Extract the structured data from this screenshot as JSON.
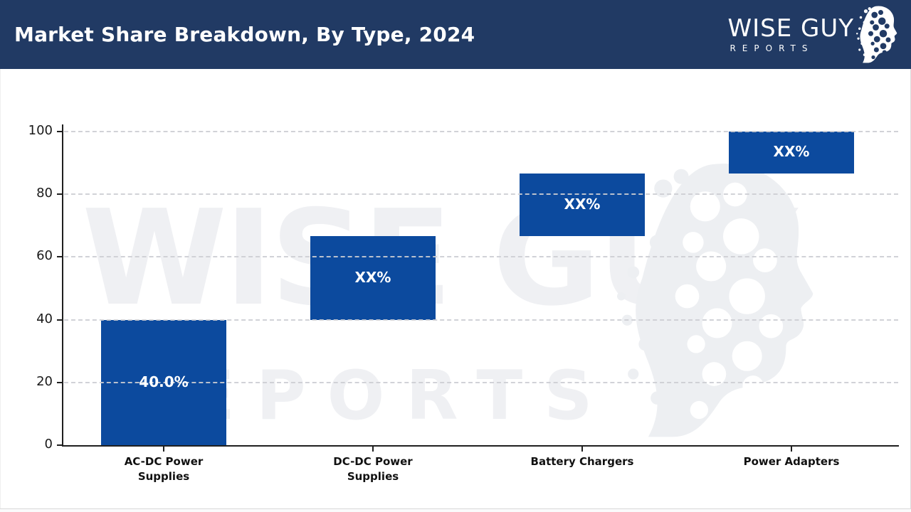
{
  "header": {
    "title": "Market Share Breakdown, By Type, 2024",
    "logo": {
      "wordmark": "WISE GUY",
      "subtext": "REPORTS"
    }
  },
  "watermark": {
    "wordmark": "WISE GUY",
    "subtext": "REPORTS"
  },
  "colors": {
    "header_background": "#213a64",
    "bar_blue": "#0c4a9e",
    "bar_label_white": "#ffffff",
    "grid_gray": "#cdced3",
    "axis_black": "#1f1f1f"
  },
  "chart_data": {
    "type": "bar",
    "variant": "waterfall",
    "title": "Market Share Breakdown, By Type, 2024",
    "categories": [
      "AC-DC Power Supplies",
      "DC-DC Power Supplies",
      "Battery Chargers",
      "Power Adapters"
    ],
    "category_lines": [
      [
        "AC-DC Power",
        "Supplies"
      ],
      [
        "DC-DC Power",
        "Supplies"
      ],
      [
        "Battery Chargers"
      ],
      [
        "Power Adapters"
      ]
    ],
    "segments": [
      {
        "category": "AC-DC Power Supplies",
        "start": 0,
        "end": 40,
        "value_label": "40.0%"
      },
      {
        "category": "DC-DC Power Supplies",
        "start": 40,
        "end": 66.7,
        "value_label": "XX%"
      },
      {
        "category": "Battery Chargers",
        "start": 66.7,
        "end": 86.7,
        "value_label": "XX%"
      },
      {
        "category": "Power Adapters",
        "start": 86.7,
        "end": 100,
        "value_label": "XX%"
      }
    ],
    "yticks": [
      0,
      20,
      40,
      60,
      80,
      100
    ],
    "ylim": [
      0,
      100
    ],
    "xlabel": "",
    "ylabel": "",
    "legend": false,
    "grid": {
      "horizontal": true,
      "style": "dashed"
    },
    "bar_color": "#0c4a9e",
    "value_label_color": "#ffffff"
  }
}
